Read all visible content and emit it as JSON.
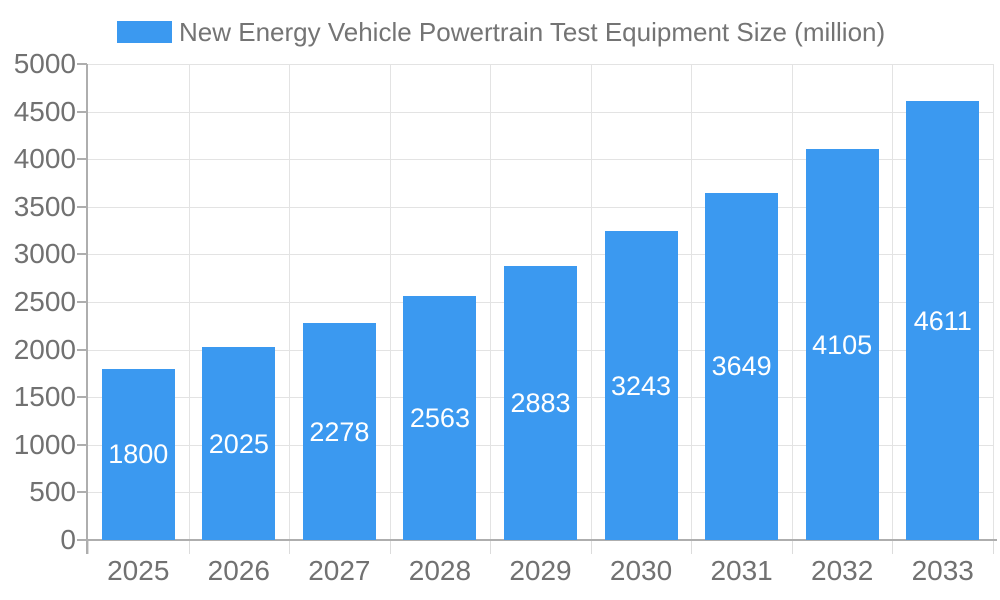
{
  "legend": {
    "label": "New Energy Vehicle Powertrain Test Equipment Size (million)"
  },
  "chart_data": {
    "type": "bar",
    "title": "New Energy Vehicle Powertrain Test Equipment Size (million)",
    "categories": [
      "2025",
      "2026",
      "2027",
      "2028",
      "2029",
      "2030",
      "2031",
      "2032",
      "2033"
    ],
    "values": [
      1800,
      2025,
      2278,
      2563,
      2883,
      3243,
      3649,
      4105,
      4611
    ],
    "xlabel": "",
    "ylabel": "",
    "ylim": [
      0,
      5000
    ],
    "ytick_step": 500,
    "grid": true,
    "legend_position": "top",
    "value_labels": "inside-center",
    "colors": {
      "bar": "#3b99f0",
      "grid": "#e3e3e3",
      "axis": "#aeaeae",
      "xtick": "#dcdcdc",
      "text": "#717171",
      "value_label": "#ffffff",
      "background": "#ffffff"
    }
  }
}
